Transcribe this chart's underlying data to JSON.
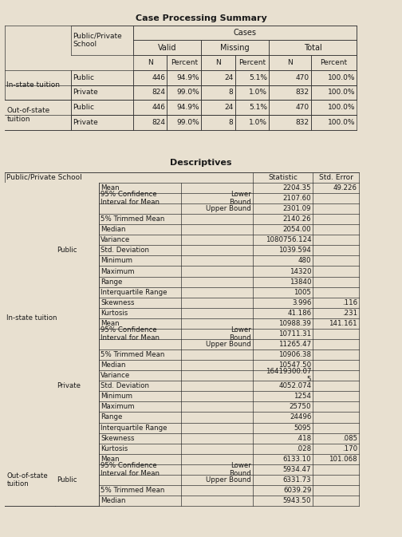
{
  "bg_color": "#e8e0d0",
  "title1": "Case Processing Summary",
  "title2": "Descriptives",
  "cps_header1": [
    "",
    "Public/Private\nSchool",
    "Valid",
    "",
    "Missing",
    "",
    "Total",
    ""
  ],
  "cps_header2": [
    "",
    "",
    "N",
    "Percent",
    "N",
    "Percent",
    "N",
    "Percent"
  ],
  "cps_subheader": "Cases",
  "cps_rows": [
    [
      "In-state tuition",
      "Public",
      "446",
      "94.9%",
      "24",
      "5.1%",
      "470",
      "100.0%"
    ],
    [
      "",
      "Private",
      "824",
      "99.0%",
      "8",
      "1.0%",
      "832",
      "100.0%"
    ],
    [
      "Out-of-state\ntuition",
      "Public",
      "446",
      "94.9%",
      "24",
      "5.1%",
      "470",
      "100.0%"
    ],
    [
      "",
      "Private",
      "824",
      "99.0%",
      "8",
      "1.0%",
      "832",
      "100.0%"
    ]
  ],
  "desc_rows": [
    [
      "In-state tuition",
      "Public",
      "Mean",
      "",
      "2204.35",
      "49.226"
    ],
    [
      "",
      "",
      "95% Confidence\nInterval for Mean",
      "Lower\nBound",
      "2107.60",
      ""
    ],
    [
      "",
      "",
      "",
      "Upper Bound",
      "2301.09",
      ""
    ],
    [
      "",
      "",
      "5% Trimmed Mean",
      "",
      "2140.26",
      ""
    ],
    [
      "",
      "",
      "Median",
      "",
      "2054.00",
      ""
    ],
    [
      "",
      "",
      "Variance",
      "",
      "1080756.124",
      ""
    ],
    [
      "",
      "",
      "Std. Deviation",
      "",
      "1039.594",
      ""
    ],
    [
      "",
      "",
      "Minimum",
      "",
      "480",
      ""
    ],
    [
      "",
      "",
      "Maximum",
      "",
      "14320",
      ""
    ],
    [
      "",
      "",
      "Range",
      "",
      "13840",
      ""
    ],
    [
      "",
      "",
      "Interquartile Range",
      "",
      "1005",
      ""
    ],
    [
      "",
      "",
      "Skewness",
      "",
      "3.996",
      ".116"
    ],
    [
      "",
      "",
      "Kurtosis",
      "",
      "41.186",
      ".231"
    ],
    [
      "",
      "Private",
      "Mean",
      "",
      "10988.39",
      "141.161"
    ],
    [
      "",
      "",
      "95% Confidence\nInterval for Mean",
      "Lower\nBound",
      "10711.31",
      ""
    ],
    [
      "",
      "",
      "",
      "Upper Bound",
      "11265.47",
      ""
    ],
    [
      "",
      "",
      "5% Trimmed Mean",
      "",
      "10906.38",
      ""
    ],
    [
      "",
      "",
      "Median",
      "",
      "10547.50",
      ""
    ],
    [
      "",
      "",
      "Variance",
      "",
      "16419300.07\n5",
      ""
    ],
    [
      "",
      "",
      "Std. Deviation",
      "",
      "4052.074",
      ""
    ],
    [
      "",
      "",
      "Minimum",
      "",
      "1254",
      ""
    ],
    [
      "",
      "",
      "Maximum",
      "",
      "25750",
      ""
    ],
    [
      "",
      "",
      "Range",
      "",
      "24496",
      ""
    ],
    [
      "",
      "",
      "Interquartile Range",
      "",
      "5095",
      ""
    ],
    [
      "",
      "",
      "Skewness",
      "",
      ".418",
      ".085"
    ],
    [
      "",
      "",
      "Kurtosis",
      "",
      ".028",
      ".170"
    ],
    [
      "Out-of-state\ntuition",
      "Public",
      "Mean",
      "",
      "6133.10",
      "101.068"
    ],
    [
      "",
      "",
      "95% Confidence\nInterval for Mean",
      "Lower\nBound",
      "5934.47",
      ""
    ],
    [
      "",
      "",
      "",
      "Upper Bound",
      "6331.73",
      ""
    ],
    [
      "",
      "",
      "5% Trimmed Mean",
      "",
      "6039.29",
      ""
    ],
    [
      "",
      "",
      "Median",
      "",
      "5943.50",
      ""
    ]
  ]
}
